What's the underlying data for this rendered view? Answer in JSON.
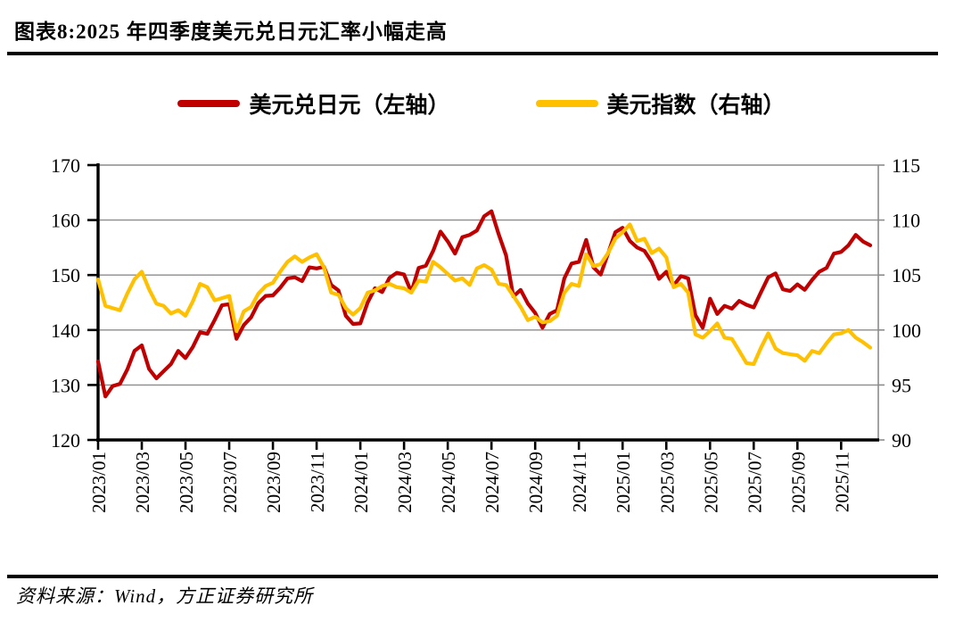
{
  "title": "图表8:2025 年四季度美元兑日元汇率小幅走高",
  "source": "资料来源：Wind，方正证券研究所",
  "legend": [
    {
      "label": "美元兑日元（左轴）",
      "color": "#C00000"
    },
    {
      "label": "美元指数（右轴）",
      "color": "#FFC000"
    }
  ],
  "colors": {
    "red": "#C00000",
    "gold": "#FFC000",
    "grid": "#8C8C8C",
    "axis": "#000000"
  },
  "chart_data": {
    "type": "line",
    "title": "图表8:2025 年四季度美元兑日元汇率小幅走高",
    "x_start": "2023/01",
    "points_per_month": 3,
    "x_tick_labels": [
      "2023/01",
      "2023/03",
      "2023/05",
      "2023/07",
      "2023/09",
      "2023/11",
      "2024/01",
      "2024/03",
      "2024/05",
      "2024/07",
      "2024/09",
      "2024/11",
      "2025/01",
      "2025/03",
      "2025/05",
      "2025/07",
      "2025/09",
      "2025/11"
    ],
    "left_axis": {
      "label": "美元兑日元",
      "ticks": [
        170,
        160,
        150,
        140,
        130,
        120
      ],
      "range": [
        120,
        170
      ]
    },
    "right_axis": {
      "label": "美元指数",
      "ticks": [
        115,
        110,
        105,
        100,
        95,
        90
      ],
      "range": [
        90,
        115
      ]
    },
    "grid": true,
    "legend_position": "top",
    "series": [
      {
        "name": "美元兑日元（左轴）",
        "axis": "left",
        "color": "#C00000",
        "values": [
          134.3,
          127.9,
          129.8,
          130.2,
          132.8,
          136.2,
          137.2,
          132.9,
          131.2,
          132.5,
          133.8,
          136.2,
          134.9,
          136.9,
          139.6,
          139.3,
          141.8,
          144.5,
          144.7,
          138.4,
          140.9,
          142.3,
          144.9,
          146.2,
          146.3,
          147.7,
          149.4,
          149.6,
          148.9,
          151.4,
          151.2,
          151.5,
          148.2,
          147.2,
          142.6,
          141.1,
          141.2,
          145.0,
          147.6,
          146.9,
          149.5,
          150.4,
          150.1,
          146.9,
          151.3,
          151.7,
          154.4,
          157.9,
          156.1,
          153.9,
          156.9,
          157.3,
          158.1,
          160.7,
          161.6,
          157.4,
          153.6,
          146.1,
          147.3,
          144.8,
          143.1,
          140.4,
          142.9,
          143.6,
          149.4,
          152.1,
          152.4,
          156.4,
          151.4,
          150.1,
          153.9,
          157.8,
          158.6,
          156.2,
          155.0,
          154.4,
          152.4,
          149.3,
          150.6,
          148.1,
          149.8,
          149.4,
          142.7,
          140.4,
          145.7,
          142.9,
          144.4,
          143.9,
          145.3,
          144.6,
          144.1,
          146.9,
          149.6,
          150.3,
          147.4,
          147.1,
          148.3,
          147.3,
          149.1,
          150.6,
          151.3,
          153.9,
          154.2,
          155.4,
          157.3,
          156.1,
          155.4
        ]
      },
      {
        "name": "美元指数（右轴）",
        "axis": "right",
        "color": "#FFC000",
        "values": [
          104.6,
          102.2,
          102.0,
          101.8,
          103.3,
          104.6,
          105.3,
          103.7,
          102.4,
          102.2,
          101.5,
          101.8,
          101.3,
          102.6,
          104.2,
          103.9,
          102.7,
          102.9,
          103.1,
          99.9,
          101.7,
          102.1,
          103.3,
          104.0,
          104.3,
          105.3,
          106.2,
          106.7,
          106.2,
          106.6,
          106.9,
          105.7,
          103.4,
          103.2,
          102.0,
          101.4,
          102.0,
          103.4,
          103.6,
          104.0,
          104.2,
          103.9,
          103.8,
          103.4,
          104.5,
          104.4,
          106.2,
          105.7,
          105.1,
          104.5,
          104.7,
          104.1,
          105.6,
          105.9,
          105.5,
          104.2,
          104.1,
          103.1,
          102.1,
          100.9,
          101.2,
          100.7,
          100.8,
          101.3,
          103.4,
          104.2,
          104.0,
          106.9,
          105.8,
          106.0,
          107.0,
          108.3,
          108.9,
          109.6,
          108.1,
          108.3,
          107.0,
          107.4,
          106.6,
          103.9,
          104.2,
          103.4,
          99.6,
          99.3,
          99.9,
          100.6,
          99.3,
          99.2,
          98.1,
          97.0,
          96.9,
          98.4,
          99.7,
          98.3,
          97.9,
          97.8,
          97.7,
          97.2,
          98.1,
          97.9,
          98.8,
          99.6,
          99.7,
          100.0,
          99.3,
          98.9,
          98.4
        ]
      }
    ]
  }
}
